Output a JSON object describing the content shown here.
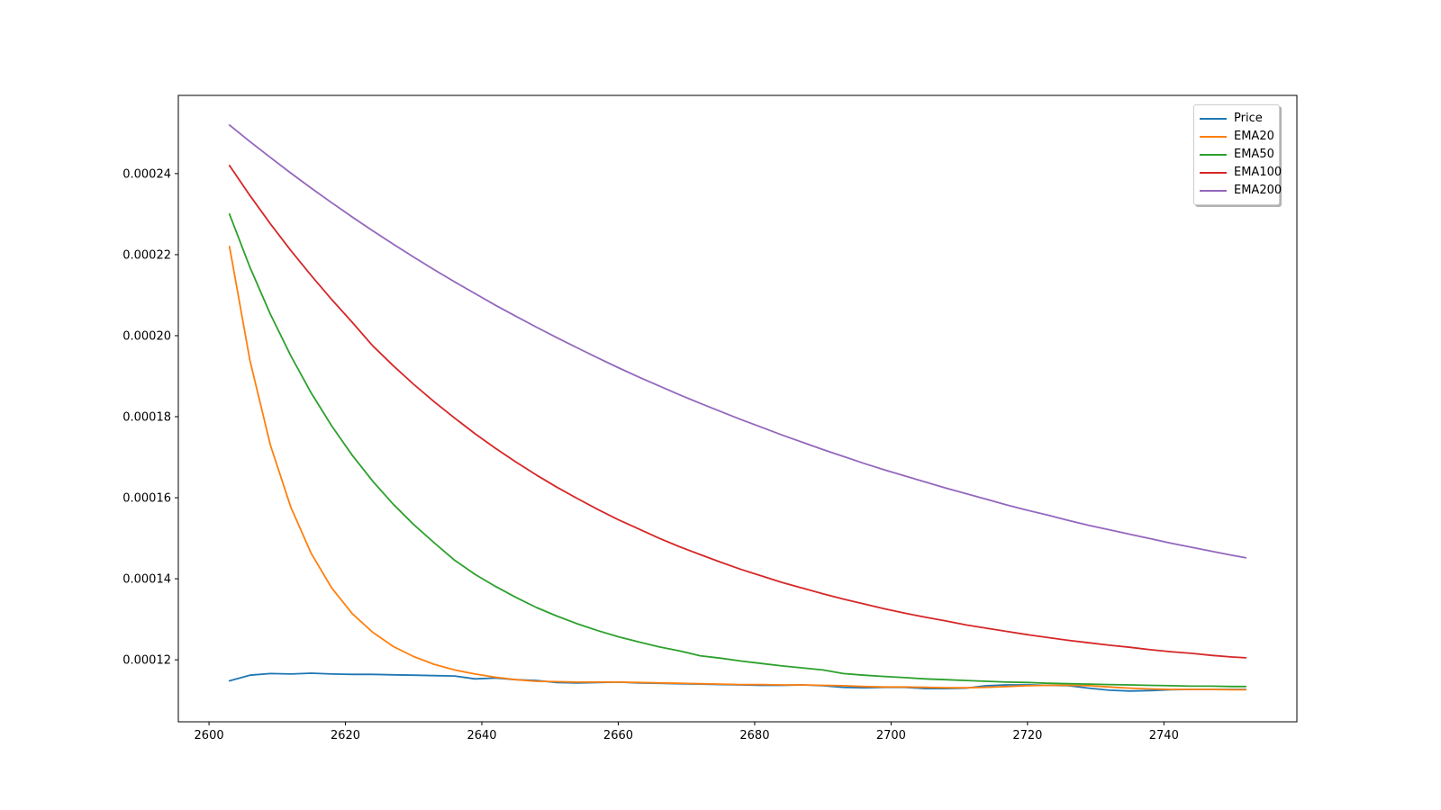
{
  "figure": {
    "background_color": "#ffffff",
    "axes_edge_color": "#000000"
  },
  "chart_data": {
    "type": "line",
    "title": "",
    "xlabel": "",
    "ylabel": "",
    "grid": false,
    "legend_position": "upper right",
    "xlim": [
      2595.5,
      2759.5
    ],
    "ylim": [
      0.0001047,
      0.0002593
    ],
    "x_ticks": [
      2600,
      2620,
      2640,
      2660,
      2680,
      2700,
      2720,
      2740
    ],
    "x_tick_labels": [
      "2600",
      "2620",
      "2640",
      "2660",
      "2680",
      "2700",
      "2720",
      "2740"
    ],
    "y_ticks": [
      0.00012,
      0.00014,
      0.00016,
      0.00018,
      0.0002,
      0.00022,
      0.00024
    ],
    "y_tick_labels": [
      "0.00012",
      "0.00014",
      "0.00016",
      "0.00018",
      "0.00020",
      "0.00022",
      "0.00024"
    ],
    "x": [
      2603,
      2606,
      2609,
      2612,
      2615,
      2618,
      2621,
      2624,
      2627,
      2630,
      2633,
      2636,
      2639,
      2642,
      2645,
      2648,
      2651,
      2654,
      2657,
      2660,
      2663,
      2666,
      2669,
      2672,
      2675,
      2678,
      2681,
      2684,
      2687,
      2690,
      2693,
      2696,
      2699,
      2702,
      2705,
      2708,
      2711,
      2714,
      2717,
      2720,
      2723,
      2726,
      2729,
      2732,
      2735,
      2738,
      2741,
      2744,
      2747,
      2750,
      2752
    ],
    "series": [
      {
        "name": "Price",
        "color": "#1f77b4",
        "values": [
          0.0001148,
          0.0001162,
          0.0001166,
          0.0001165,
          0.0001167,
          0.0001165,
          0.0001164,
          0.0001164,
          0.0001163,
          0.0001162,
          0.0001161,
          0.000116,
          0.0001153,
          0.0001155,
          0.0001151,
          0.0001149,
          0.0001144,
          0.0001143,
          0.0001144,
          0.0001145,
          0.0001143,
          0.0001142,
          0.0001141,
          0.000114,
          0.0001139,
          0.0001138,
          0.0001137,
          0.0001137,
          0.0001138,
          0.0001136,
          0.0001132,
          0.0001131,
          0.0001132,
          0.0001132,
          0.0001129,
          0.0001129,
          0.000113,
          0.0001136,
          0.0001138,
          0.0001138,
          0.0001137,
          0.0001136,
          0.000113,
          0.0001125,
          0.0001123,
          0.0001124,
          0.0001126,
          0.0001127,
          0.0001127,
          0.0001127,
          0.0001127
        ]
      },
      {
        "name": "EMA20",
        "color": "#ff7f0e",
        "values": [
          0.000222,
          0.0001939,
          0.000173,
          0.0001576,
          0.0001462,
          0.0001377,
          0.0001314,
          0.0001268,
          0.0001233,
          0.0001208,
          0.0001189,
          0.0001175,
          0.0001165,
          0.0001157,
          0.0001151,
          0.0001147,
          0.0001146,
          0.0001145,
          0.0001145,
          0.0001145,
          0.0001144,
          0.0001143,
          0.0001142,
          0.0001141,
          0.000114,
          0.0001139,
          0.0001139,
          0.0001138,
          0.0001138,
          0.0001137,
          0.0001136,
          0.0001134,
          0.0001133,
          0.0001133,
          0.0001132,
          0.0001131,
          0.0001131,
          0.0001132,
          0.0001134,
          0.0001136,
          0.0001137,
          0.0001137,
          0.0001136,
          0.0001133,
          0.000113,
          0.0001128,
          0.0001127,
          0.0001127,
          0.0001127,
          0.0001126,
          0.0001126
        ]
      },
      {
        "name": "EMA50",
        "color": "#2ca02c",
        "values": [
          0.00023,
          0.0002169,
          0.0002053,
          0.000195,
          0.0001858,
          0.0001777,
          0.0001705,
          0.0001641,
          0.0001584,
          0.0001534,
          0.0001489,
          0.0001446,
          0.0001411,
          0.0001381,
          0.0001354,
          0.0001329,
          0.0001308,
          0.0001289,
          0.0001272,
          0.0001257,
          0.0001244,
          0.0001232,
          0.0001222,
          0.000121,
          0.0001204,
          0.0001197,
          0.0001191,
          0.0001185,
          0.000118,
          0.0001175,
          0.0001166,
          0.0001162,
          0.0001159,
          0.0001156,
          0.0001153,
          0.0001151,
          0.0001149,
          0.0001147,
          0.0001145,
          0.0001144,
          0.0001142,
          0.0001141,
          0.000114,
          0.0001139,
          0.0001138,
          0.0001137,
          0.0001136,
          0.0001135,
          0.0001135,
          0.0001134,
          0.0001134
        ]
      },
      {
        "name": "EMA100",
        "color": "#d62728",
        "values": [
          0.000242,
          0.0002346,
          0.0002276,
          0.000221,
          0.0002148,
          0.0002089,
          0.0002033,
          0.0001975,
          0.0001926,
          0.000188,
          0.0001837,
          0.0001797,
          0.0001758,
          0.0001722,
          0.0001688,
          0.0001656,
          0.0001626,
          0.0001598,
          0.0001571,
          0.0001546,
          0.0001523,
          0.00015,
          0.0001479,
          0.000146,
          0.0001441,
          0.0001423,
          0.0001407,
          0.0001391,
          0.0001377,
          0.0001363,
          0.000135,
          0.0001338,
          0.0001326,
          0.0001315,
          0.0001305,
          0.0001296,
          0.0001286,
          0.0001278,
          0.000127,
          0.0001262,
          0.0001255,
          0.0001248,
          0.0001242,
          0.0001236,
          0.0001231,
          0.0001225,
          0.000122,
          0.0001216,
          0.0001211,
          0.0001207,
          0.0001205
        ]
      },
      {
        "name": "EMA200",
        "color": "#9467bd",
        "values": [
          0.000252,
          0.0002479,
          0.000244,
          0.0002401,
          0.0002364,
          0.0002328,
          0.0002293,
          0.0002259,
          0.0002226,
          0.0002194,
          0.0002163,
          0.0002133,
          0.0002104,
          0.0002075,
          0.0002048,
          0.0002021,
          0.0001995,
          0.000197,
          0.0001945,
          0.0001921,
          0.0001898,
          0.0001876,
          0.0001854,
          0.0001833,
          0.0001813,
          0.0001793,
          0.0001774,
          0.0001755,
          0.0001737,
          0.0001719,
          0.0001702,
          0.0001685,
          0.0001669,
          0.0001654,
          0.0001639,
          0.0001624,
          0.000161,
          0.0001596,
          0.0001582,
          0.0001569,
          0.0001557,
          0.0001544,
          0.0001532,
          0.0001521,
          0.000151,
          0.0001499,
          0.0001488,
          0.0001478,
          0.0001468,
          0.0001458,
          0.0001452
        ]
      }
    ]
  },
  "legend": {
    "items": [
      {
        "label": "Price",
        "color": "#1f77b4"
      },
      {
        "label": "EMA20",
        "color": "#ff7f0e"
      },
      {
        "label": "EMA50",
        "color": "#2ca02c"
      },
      {
        "label": "EMA100",
        "color": "#d62728"
      },
      {
        "label": "EMA200",
        "color": "#9467bd"
      }
    ]
  }
}
